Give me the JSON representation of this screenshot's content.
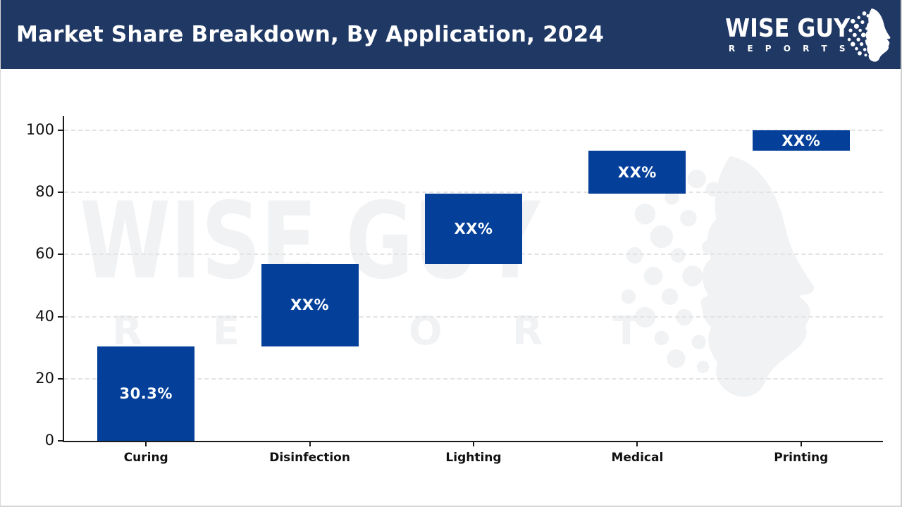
{
  "header": {
    "title": "Market Share Breakdown, By Application, 2024",
    "bg_color": "#1f3864",
    "logo": {
      "line1": "WISE GUY",
      "line2": "R E P O R T S"
    }
  },
  "watermark": {
    "line1": "WISE GUY",
    "line2": "R E P O R T S"
  },
  "chart_data": {
    "type": "bar",
    "subtype": "floating-waterfall",
    "title": "Market Share Breakdown, By Application, 2024",
    "categories": [
      "Curing",
      "Disinfection",
      "Lighting",
      "Medical",
      "Printing"
    ],
    "segments": [
      {
        "category": "Curing",
        "start": 0,
        "end": 30.3,
        "label": "30.3%"
      },
      {
        "category": "Disinfection",
        "start": 30.3,
        "end": 57,
        "label": "XX%"
      },
      {
        "category": "Lighting",
        "start": 57,
        "end": 79.5,
        "label": "XX%"
      },
      {
        "category": "Medical",
        "start": 79.5,
        "end": 93.3,
        "label": "XX%"
      },
      {
        "category": "Printing",
        "start": 93.3,
        "end": 100,
        "label": "XX%"
      }
    ],
    "yticks": [
      0,
      20,
      40,
      60,
      80,
      100
    ],
    "ylim": [
      0,
      104.5
    ],
    "xlabel": "",
    "ylabel": "",
    "grid": "dashed-horizontal",
    "legend": "none",
    "bar_color": "#04409a",
    "bar_label_color": "#ffffff",
    "axis_color": "#1a1a1a",
    "grid_color": "#e3e3e3",
    "watermark_color": "#f1f2f4"
  }
}
